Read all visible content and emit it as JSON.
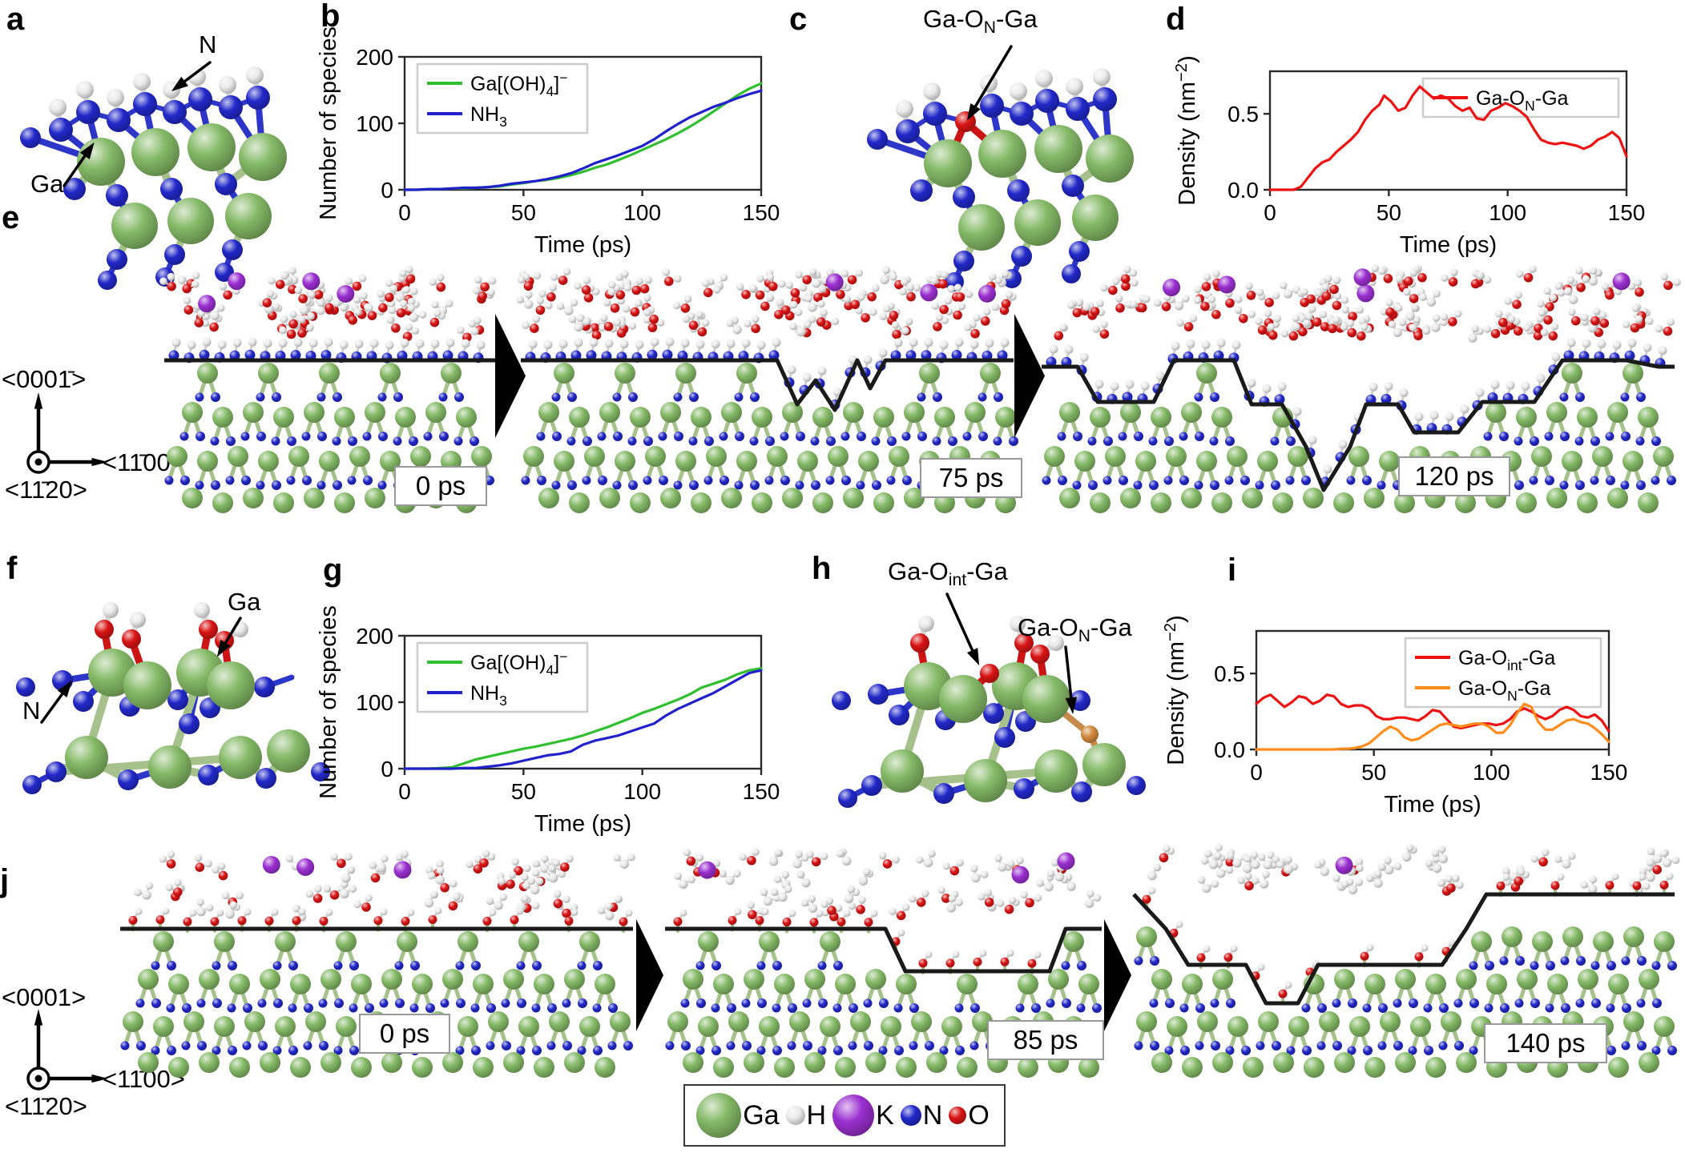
{
  "panel_letters": {
    "a": "a",
    "b": "b",
    "c": "c",
    "d": "d",
    "e": "e",
    "f": "f",
    "g": "g",
    "h": "h",
    "i": "i",
    "j": "j"
  },
  "colors": {
    "ga_atom": "#84b966",
    "h_atom": "#ebebeb",
    "k_atom": "#9a2fd0",
    "n_atom": "#2228c8",
    "o_atom": "#d81414",
    "o_n_site": "#d2873c",
    "line_green": "#2fbf2f",
    "line_blue": "#2121cc",
    "line_red": "#ee1111",
    "line_orange": "#ff8c1a",
    "bond_gan": "#a6c18b",
    "bond_n": "#2d36c8",
    "bond_h": "#d8d8d8",
    "bond_o": "#cc1414",
    "etch_line": "#1a1a1a"
  },
  "structure_labels": {
    "a_n": "N",
    "a_ga": "Ga",
    "c_bridge": "Ga-O_{N}-Ga",
    "f_ga": "Ga",
    "f_n": "N",
    "h_int": "Ga-O_{int}-Ga",
    "h_n": "Ga-O_{N}-Ga"
  },
  "direction_axes": {
    "e": {
      "up": "<0001̄>",
      "right": "<11̄00>",
      "out_of_plane": "<11̄20>"
    },
    "j": {
      "up": "<0001>",
      "right": "<11̄00>",
      "out_of_plane": "<11̄20>"
    }
  },
  "snapshot_times": {
    "e": [
      "0 ps",
      "75 ps",
      "120 ps"
    ],
    "j": [
      "0 ps",
      "85 ps",
      "140 ps"
    ]
  },
  "atom_legend": {
    "items": [
      {
        "symbol": "Ga",
        "type": "ga",
        "r": 28
      },
      {
        "symbol": "H",
        "type": "h",
        "r": 12
      },
      {
        "symbol": "K",
        "type": "k",
        "r": 26
      },
      {
        "symbol": "N",
        "type": "n",
        "r": 13
      },
      {
        "symbol": "O",
        "type": "o",
        "r": 11
      }
    ]
  },
  "chart_data": [
    {
      "id": "b",
      "type": "line",
      "title": "",
      "xlabel": "Time (ps)",
      "ylabel": "Number of species",
      "xlim": [
        0,
        150
      ],
      "ylim": [
        0,
        200
      ],
      "xticks": [
        0,
        50,
        100,
        150
      ],
      "xtick_labels": [
        "0",
        "50",
        "100",
        "150"
      ],
      "yticks": [
        0,
        100,
        200
      ],
      "ytick_labels": [
        "0",
        "100",
        "200"
      ],
      "grid": false,
      "legend_pos": "top-left",
      "series": [
        {
          "name": "Ga[(OH)_{4}]^{−}",
          "color": "#2fbf2f",
          "x": [
            0,
            5,
            10,
            15,
            20,
            25,
            30,
            35,
            40,
            45,
            50,
            55,
            60,
            65,
            70,
            75,
            80,
            85,
            90,
            95,
            100,
            105,
            110,
            115,
            120,
            125,
            130,
            135,
            140,
            145,
            150
          ],
          "y": [
            0,
            0,
            1,
            1,
            2,
            2,
            3,
            4,
            5,
            8,
            10,
            13,
            15,
            18,
            22,
            27,
            33,
            38,
            45,
            52,
            60,
            68,
            76,
            85,
            95,
            106,
            118,
            130,
            142,
            152,
            160
          ]
        },
        {
          "name": "NH_{3}",
          "color": "#2121cc",
          "x": [
            0,
            5,
            10,
            15,
            20,
            25,
            30,
            35,
            40,
            45,
            50,
            55,
            60,
            65,
            70,
            75,
            80,
            85,
            90,
            95,
            100,
            105,
            110,
            115,
            120,
            125,
            130,
            135,
            140,
            145,
            150
          ],
          "y": [
            0,
            0,
            1,
            1,
            2,
            3,
            3,
            4,
            6,
            9,
            11,
            13,
            16,
            20,
            25,
            32,
            40,
            46,
            52,
            59,
            66,
            76,
            88,
            99,
            109,
            117,
            125,
            131,
            138,
            144,
            149
          ]
        }
      ]
    },
    {
      "id": "d",
      "type": "line",
      "title": "",
      "xlabel": "Time (ps)",
      "ylabel": "Density (nm^{−2})",
      "xlim": [
        0,
        150
      ],
      "ylim": [
        0,
        0.78
      ],
      "xticks": [
        0,
        50,
        100,
        150
      ],
      "xtick_labels": [
        "0",
        "50",
        "100",
        "150"
      ],
      "yticks": [
        0,
        0.5
      ],
      "ytick_labels": [
        "0.0",
        "0.5"
      ],
      "grid": false,
      "legend_pos": "top-right",
      "series": [
        {
          "name": "Ga-O_{N}-Ga",
          "color": "#ee1111",
          "x": [
            0,
            5,
            10,
            13,
            16,
            19,
            22,
            25,
            28,
            31,
            34,
            37,
            40,
            43,
            46,
            48,
            51,
            54,
            57,
            60,
            63,
            66,
            69,
            72,
            75,
            78,
            81,
            84,
            87,
            90,
            93,
            96,
            99,
            102,
            105,
            108,
            111,
            114,
            117,
            120,
            123,
            126,
            129,
            132,
            135,
            138,
            141,
            144,
            147,
            150
          ],
          "y": [
            0,
            0,
            0,
            0.02,
            0.08,
            0.14,
            0.18,
            0.2,
            0.25,
            0.29,
            0.33,
            0.38,
            0.46,
            0.52,
            0.56,
            0.62,
            0.58,
            0.52,
            0.54,
            0.62,
            0.68,
            0.64,
            0.6,
            0.62,
            0.6,
            0.55,
            0.52,
            0.54,
            0.47,
            0.46,
            0.52,
            0.54,
            0.57,
            0.55,
            0.52,
            0.48,
            0.4,
            0.33,
            0.31,
            0.3,
            0.31,
            0.3,
            0.29,
            0.27,
            0.29,
            0.33,
            0.35,
            0.38,
            0.34,
            0.22
          ]
        }
      ]
    },
    {
      "id": "g",
      "type": "line",
      "title": "",
      "xlabel": "Time (ps)",
      "ylabel": "Number of species",
      "xlim": [
        0,
        150
      ],
      "ylim": [
        0,
        200
      ],
      "xticks": [
        0,
        50,
        100,
        150
      ],
      "xtick_labels": [
        "0",
        "50",
        "100",
        "150"
      ],
      "yticks": [
        0,
        100,
        200
      ],
      "ytick_labels": [
        "0",
        "100",
        "200"
      ],
      "grid": false,
      "legend_pos": "top-left",
      "series": [
        {
          "name": "Ga[(OH)_{4}]^{−}",
          "color": "#2fbf2f",
          "x": [
            0,
            5,
            10,
            15,
            20,
            25,
            30,
            35,
            40,
            45,
            50,
            55,
            60,
            65,
            70,
            75,
            80,
            85,
            90,
            95,
            100,
            105,
            110,
            115,
            120,
            125,
            130,
            135,
            140,
            145,
            150
          ],
          "y": [
            0,
            0,
            0,
            1,
            2,
            8,
            14,
            18,
            22,
            26,
            30,
            33,
            37,
            41,
            45,
            50,
            56,
            62,
            69,
            76,
            84,
            90,
            97,
            104,
            112,
            122,
            128,
            134,
            142,
            148,
            151
          ]
        },
        {
          "name": "NH_{3}",
          "color": "#2121cc",
          "x": [
            0,
            5,
            10,
            15,
            20,
            25,
            30,
            35,
            40,
            45,
            50,
            55,
            60,
            65,
            70,
            75,
            80,
            85,
            90,
            95,
            100,
            105,
            110,
            115,
            120,
            125,
            130,
            135,
            140,
            145,
            150
          ],
          "y": [
            0,
            0,
            0,
            0,
            0,
            1,
            1,
            3,
            5,
            8,
            12,
            16,
            20,
            22,
            26,
            36,
            42,
            46,
            50,
            56,
            62,
            68,
            80,
            90,
            98,
            106,
            114,
            124,
            134,
            144,
            148
          ]
        }
      ]
    },
    {
      "id": "i",
      "type": "line",
      "title": "",
      "xlabel": "Time (ps)",
      "ylabel": "Density (nm^{−2})",
      "xlim": [
        0,
        150
      ],
      "ylim": [
        0,
        0.78
      ],
      "xticks": [
        0,
        50,
        100,
        150
      ],
      "xtick_labels": [
        "0",
        "50",
        "100",
        "150"
      ],
      "yticks": [
        0,
        0.5
      ],
      "ytick_labels": [
        "0.0",
        "0.5"
      ],
      "grid": false,
      "legend_pos": "top-right",
      "series": [
        {
          "name": "Ga-O_{int}-Ga",
          "color": "#ee1111",
          "x": [
            0,
            3,
            6,
            9,
            12,
            15,
            18,
            21,
            24,
            27,
            30,
            33,
            36,
            39,
            42,
            45,
            48,
            51,
            54,
            57,
            60,
            63,
            66,
            69,
            72,
            75,
            78,
            81,
            84,
            87,
            90,
            93,
            96,
            99,
            102,
            105,
            108,
            111,
            114,
            117,
            120,
            123,
            126,
            129,
            132,
            135,
            138,
            141,
            144,
            147,
            150
          ],
          "y": [
            0.3,
            0.34,
            0.36,
            0.32,
            0.28,
            0.31,
            0.35,
            0.34,
            0.3,
            0.32,
            0.36,
            0.35,
            0.3,
            0.28,
            0.29,
            0.29,
            0.27,
            0.22,
            0.2,
            0.2,
            0.21,
            0.21,
            0.2,
            0.19,
            0.22,
            0.26,
            0.25,
            0.2,
            0.15,
            0.14,
            0.15,
            0.16,
            0.17,
            0.17,
            0.16,
            0.17,
            0.2,
            0.25,
            0.27,
            0.25,
            0.22,
            0.2,
            0.22,
            0.26,
            0.28,
            0.26,
            0.22,
            0.21,
            0.23,
            0.19,
            0.12
          ]
        },
        {
          "name": "Ga-O_{N}-Ga",
          "color": "#ff8c1a",
          "x": [
            0,
            3,
            6,
            9,
            12,
            15,
            18,
            21,
            24,
            27,
            30,
            33,
            36,
            39,
            42,
            45,
            48,
            51,
            54,
            57,
            60,
            63,
            66,
            69,
            72,
            75,
            78,
            81,
            84,
            87,
            90,
            93,
            96,
            99,
            102,
            105,
            108,
            111,
            114,
            117,
            120,
            123,
            126,
            129,
            132,
            135,
            138,
            141,
            144,
            147,
            150
          ],
          "y": [
            0,
            0,
            0,
            0,
            0,
            0,
            0,
            0,
            0,
            0,
            0,
            0,
            0.005,
            0.005,
            0.01,
            0.02,
            0.04,
            0.08,
            0.12,
            0.15,
            0.13,
            0.08,
            0.06,
            0.07,
            0.1,
            0.13,
            0.16,
            0.17,
            0.16,
            0.15,
            0.16,
            0.17,
            0.17,
            0.15,
            0.11,
            0.11,
            0.16,
            0.24,
            0.3,
            0.28,
            0.18,
            0.13,
            0.13,
            0.16,
            0.19,
            0.2,
            0.18,
            0.17,
            0.14,
            0.1,
            0.05
          ]
        }
      ]
    }
  ]
}
